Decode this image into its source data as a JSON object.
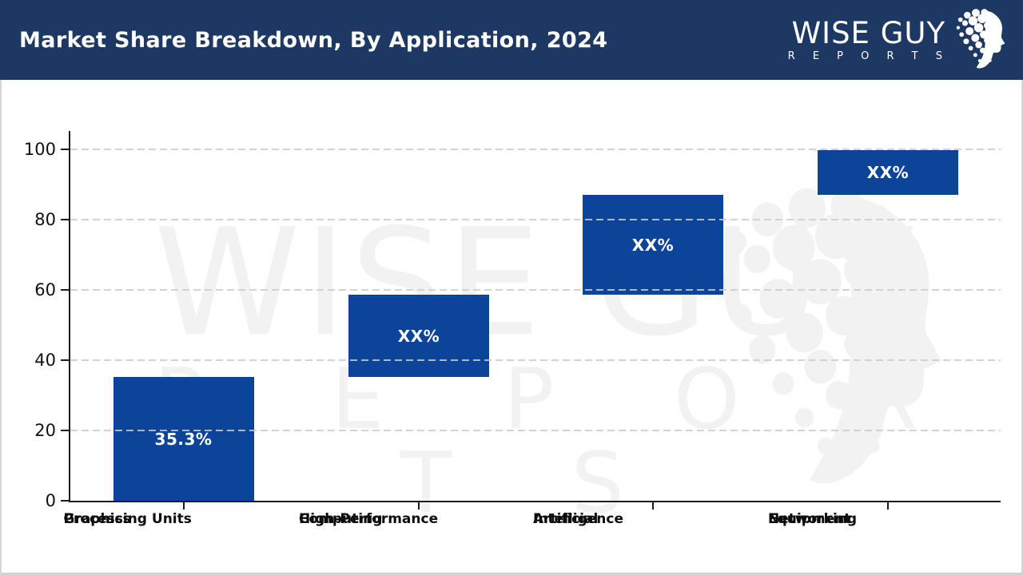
{
  "header": {
    "title": "Market Share Breakdown, By Application, 2024",
    "logo": {
      "line1": "WISE GUY",
      "line2": "R E P O R T S",
      "head_icon": "dotted-head-profile"
    }
  },
  "watermark": {
    "line1": "WISE GUY",
    "line2": "R E P O R T S",
    "head_icon": "dotted-head-profile"
  },
  "colors": {
    "header_bg": "#1e3864",
    "bar_fill": "#0b4499",
    "title_text": "#ffffff",
    "axis": "#1c1c1c",
    "grid": "#cbcbce",
    "watermark": "#f2f2f2",
    "value_label": "#ffffff"
  },
  "chart_data": {
    "type": "bar",
    "subtype": "waterfall",
    "title": "Market Share Breakdown, By Application, 2024",
    "categories": [
      [
        "Graphics",
        "Processing Units"
      ],
      [
        "High-Performance",
        "Computing"
      ],
      [
        "Artificial",
        "Intelligence"
      ],
      [
        "Networking",
        "Equipment"
      ]
    ],
    "segments": [
      {
        "category": "Graphics Processing Units",
        "start": 0,
        "end": 35.3,
        "label": "35.3%"
      },
      {
        "category": "High-Performance Computing",
        "start": 35.3,
        "end": 58.6,
        "label": "XX%"
      },
      {
        "category": "Artificial Intelligence",
        "start": 58.6,
        "end": 86.9,
        "label": "XX%"
      },
      {
        "category": "Networking Equipment",
        "start": 86.9,
        "end": 99.6,
        "label": "XX%"
      }
    ],
    "yticks": [
      0,
      20,
      40,
      60,
      80,
      100
    ],
    "ylim": [
      0,
      105
    ],
    "xlabel": "",
    "ylabel": "",
    "grid": "horizontal-dashed",
    "legend": "none",
    "bar_color": "#0b4499",
    "value_label_color": "#ffffff"
  }
}
